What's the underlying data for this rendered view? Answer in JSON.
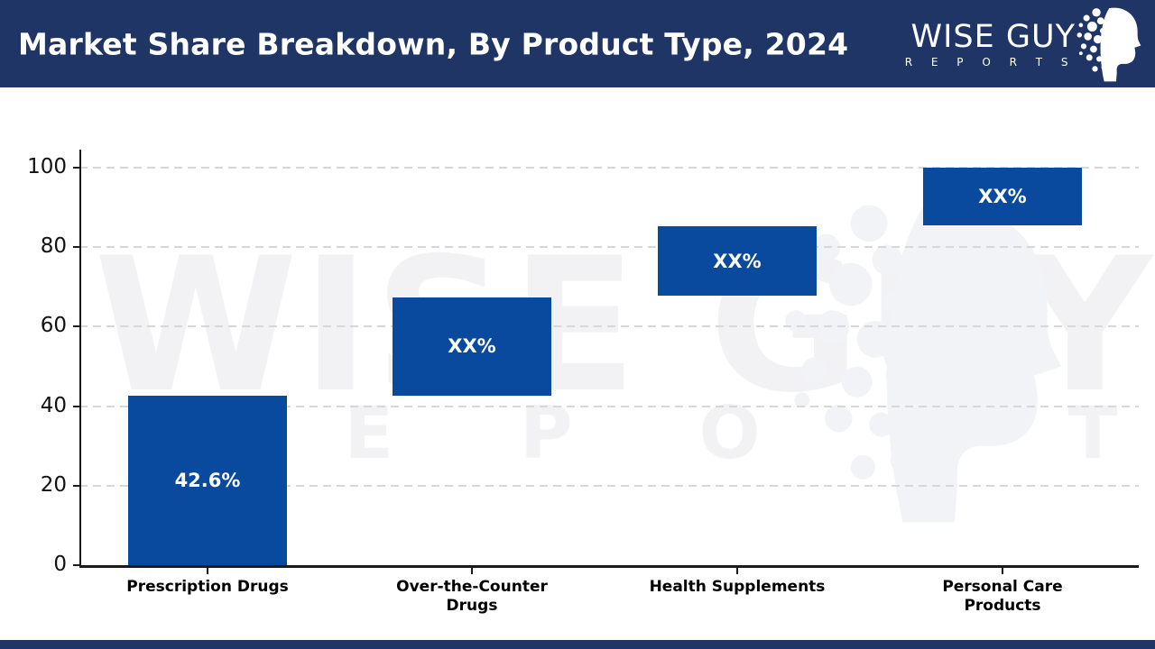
{
  "header": {
    "title": "Market Share Breakdown, By Product Type, 2024",
    "logo": {
      "name": "WISE GUY",
      "sub": "R E P O R T S"
    }
  },
  "watermark": {
    "line1": "WISE GUY",
    "line2": "R E P O R T S"
  },
  "chart_data": {
    "type": "bar",
    "subtype": "waterfall",
    "title": "Market Share Breakdown, By Product Type, 2024",
    "xlabel": "",
    "ylabel": "",
    "ylim": [
      0,
      104.5
    ],
    "yticks": [
      0,
      20,
      40,
      60,
      80,
      100
    ],
    "grid": "dashed-horizontal",
    "legend": "none",
    "categories": [
      "Prescription Drugs",
      "Over-the-Counter Drugs",
      "Health Supplements",
      "Personal Care Products"
    ],
    "category_lines": [
      [
        "Prescription Drugs"
      ],
      [
        "Over-the-Counter",
        "Drugs"
      ],
      [
        "Health Supplements"
      ],
      [
        "Personal Care",
        "Products"
      ]
    ],
    "segments": [
      {
        "category": "Prescription Drugs",
        "start": 0,
        "end": 42.6,
        "label": "42.6%"
      },
      {
        "category": "Over-the-Counter Drugs",
        "start": 42.6,
        "end": 67.4,
        "label": "XX%"
      },
      {
        "category": "Health Supplements",
        "start": 67.8,
        "end": 85.2,
        "label": "XX%"
      },
      {
        "category": "Personal Care Products",
        "start": 85.5,
        "end": 100,
        "label": "XX%"
      }
    ]
  },
  "colors": {
    "header_bg": "#1e3566",
    "footer_bg": "#1e3566",
    "bar_blue": "#0a4a9e",
    "bar_label": "#ffffff",
    "axis": "#1a1a1a",
    "gridline": "#d7d7d7",
    "tick_label": "#111111",
    "watermark": "#f2f2f5"
  }
}
